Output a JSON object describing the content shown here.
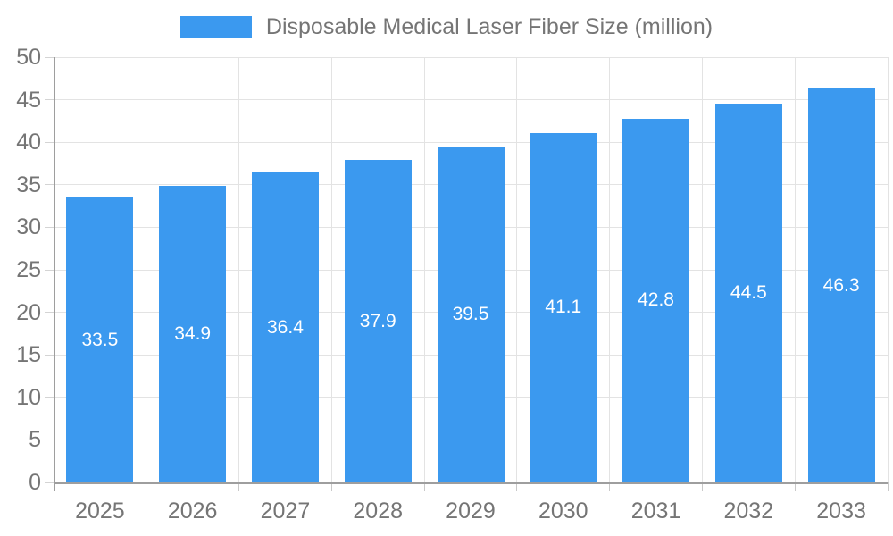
{
  "legend": {
    "label": "Disposable Medical Laser Fiber Size (million)",
    "swatch_color": "#3B99EF"
  },
  "colors": {
    "bar": "#3B99EF",
    "bar_value_text": "#ffffff",
    "axis_line": "#9e9e9e",
    "grid_line": "#e3e3e3",
    "tick_line": "#d4d4d4",
    "axis_text": "#757575"
  },
  "chart_data": {
    "type": "bar",
    "title": "Disposable Medical Laser Fiber Size (million)",
    "categories": [
      "2025",
      "2026",
      "2027",
      "2028",
      "2029",
      "2030",
      "2031",
      "2032",
      "2033"
    ],
    "values": [
      33.5,
      34.9,
      36.4,
      37.9,
      39.5,
      41.1,
      42.8,
      44.5,
      46.3
    ],
    "value_labels": [
      "33.5",
      "34.9",
      "36.4",
      "37.9",
      "39.5",
      "41.1",
      "42.8",
      "44.5",
      "46.3"
    ],
    "xlabel": "",
    "ylabel": "",
    "ylim": [
      0,
      50
    ],
    "ytick_step": 5,
    "ytick_labels": [
      "0",
      "5",
      "10",
      "15",
      "20",
      "25",
      "30",
      "35",
      "40",
      "45",
      "50"
    ],
    "grid": true,
    "vertical_grid": true,
    "legend_position": "top-center",
    "value_label_position": "center-of-bar"
  }
}
